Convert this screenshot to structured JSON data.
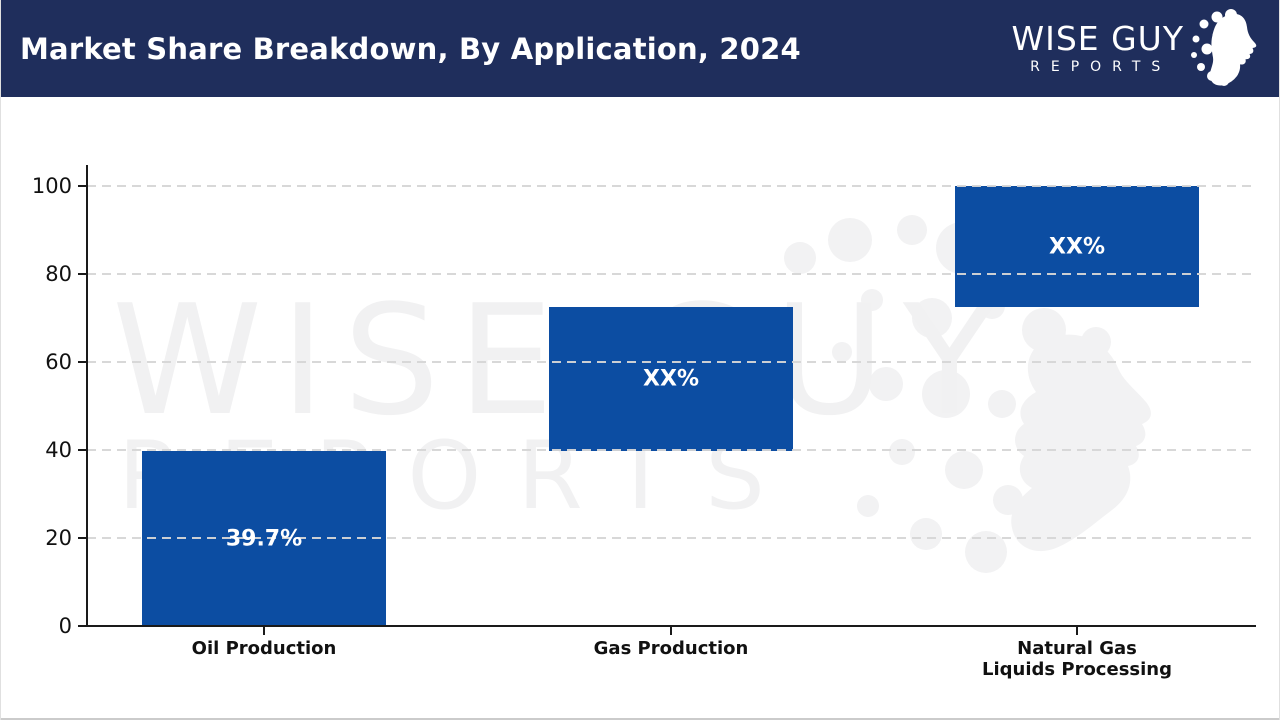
{
  "header": {
    "logo": {
      "wordmark": "WISE GUY",
      "subtext": "REPORTS"
    },
    "bg_color": "#1f2e5c"
  },
  "watermark": {
    "line1": "WISE GUY",
    "line2": "REPORTS"
  },
  "chart_data": {
    "type": "bar",
    "variant": "waterfall",
    "title": "Market Share Breakdown, By Application, 2024",
    "categories": [
      "Oil Production",
      "Gas Production",
      "Natural Gas\nLiquids Processing"
    ],
    "segments": [
      {
        "category": "Oil Production",
        "start": 0,
        "end": 39.7,
        "label": "39.7%"
      },
      {
        "category": "Gas Production",
        "start": 39.7,
        "end": 72.5,
        "label": "XX%"
      },
      {
        "category": "Natural Gas\nLiquids Processing",
        "start": 72.5,
        "end": 100,
        "label": "XX%"
      }
    ],
    "value_labels": [
      "39.7%",
      "XX%",
      "XX%"
    ],
    "ylim": [
      0,
      100
    ],
    "yticks": [
      0,
      20,
      40,
      60,
      80,
      100
    ],
    "xlabel": "",
    "ylabel": "",
    "grid": {
      "horizontal": true,
      "style": "dashed",
      "color": "#d9d9d9"
    },
    "bar_color": "#0c4da2",
    "value_label_color": "#ffffff",
    "axis_color": "#1a1a1a",
    "legend": null
  }
}
